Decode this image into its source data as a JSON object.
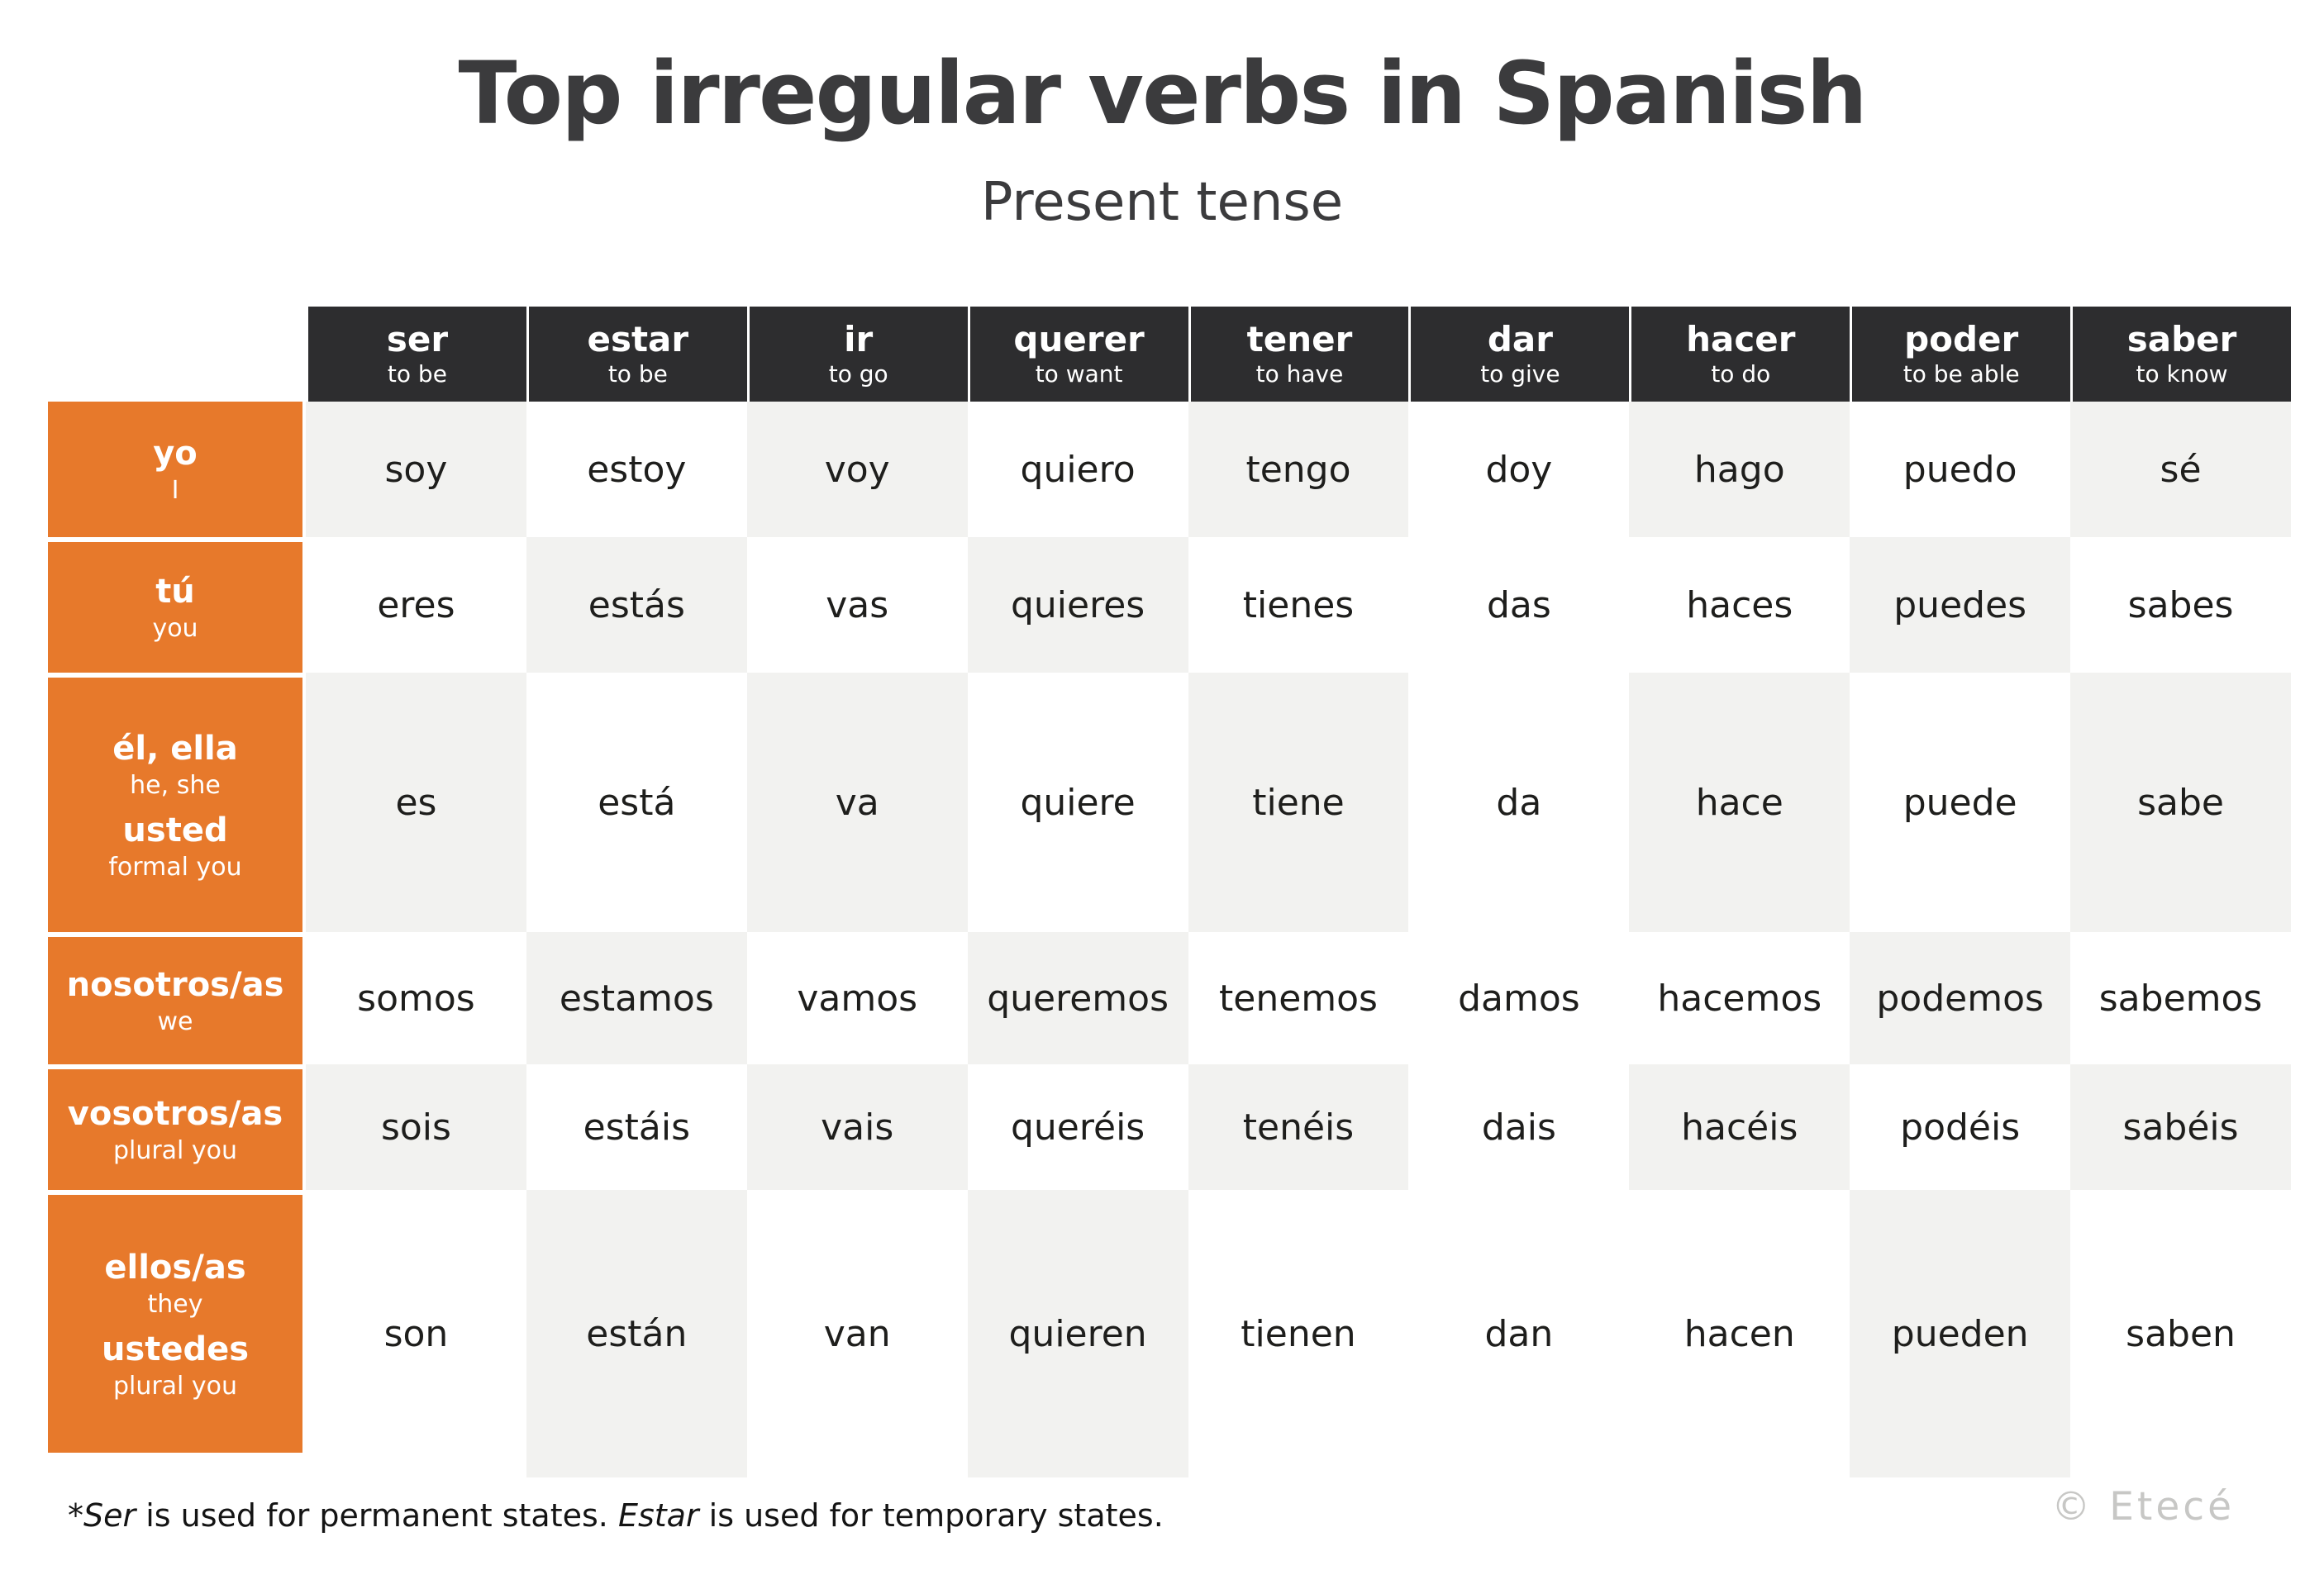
{
  "title": "Top irregular verbs in Spanish",
  "subtitle": "Present tense",
  "columns": [
    {
      "verb": "ser",
      "translation": "to be"
    },
    {
      "verb": "estar",
      "translation": "to be"
    },
    {
      "verb": "ir",
      "translation": "to go"
    },
    {
      "verb": "querer",
      "translation": "to want"
    },
    {
      "verb": "tener",
      "translation": "to have"
    },
    {
      "verb": "dar",
      "translation": "to give"
    },
    {
      "verb": "hacer",
      "translation": "to do"
    },
    {
      "verb": "poder",
      "translation": "to be able"
    },
    {
      "verb": "saber",
      "translation": "to know"
    }
  ],
  "rows": [
    {
      "pronoun": "yo",
      "pronoun_translation": "I",
      "forms": [
        "soy",
        "estoy",
        "voy",
        "quiero",
        "tengo",
        "doy",
        "hago",
        "puedo",
        "sé"
      ]
    },
    {
      "pronoun": "tú",
      "pronoun_translation": "you",
      "forms": [
        "eres",
        "estás",
        "vas",
        "quieres",
        "tienes",
        "das",
        "haces",
        "puedes",
        "sabes"
      ]
    },
    {
      "pronoun": "él, ella",
      "pronoun_translation": "he, she",
      "pronoun2": "usted",
      "pronoun2_translation": "formal you",
      "forms": [
        "es",
        "está",
        "va",
        "quiere",
        "tiene",
        "da",
        "hace",
        "puede",
        "sabe"
      ]
    },
    {
      "pronoun": "nosotros/as",
      "pronoun_translation": "we",
      "forms": [
        "somos",
        "estamos",
        "vamos",
        "queremos",
        "tenemos",
        "damos",
        "hacemos",
        "podemos",
        "sabemos"
      ]
    },
    {
      "pronoun": "vosotros/as",
      "pronoun_translation": "plural you",
      "forms": [
        "sois",
        "estáis",
        "vais",
        "queréis",
        "tenéis",
        "dais",
        "hacéis",
        "podéis",
        "sabéis"
      ]
    },
    {
      "pronoun": "ellos/as",
      "pronoun_translation": "they",
      "pronoun2": "ustedes",
      "pronoun2_translation": "plural you",
      "forms": [
        "son",
        "están",
        "van",
        "quieren",
        "tienen",
        "dan",
        "hacen",
        "pueden",
        "saben"
      ]
    }
  ],
  "footnote": {
    "marker": "*",
    "term1": "Ser",
    "text1": " is used for permanent states. ",
    "term2": "Estar",
    "text2": " is used for temporary states."
  },
  "watermark": "© Etecé",
  "colors": {
    "orange": "#E7792B",
    "header_dark": "#2D2D2F",
    "cell_gray": "#F2F2F0",
    "cell_white": "#FFFFFF",
    "title_ink": "#3B3B3D",
    "body_ink": "#1E1E1C",
    "watermark_gray": "#C7C7C5"
  },
  "chart_data": {
    "type": "table",
    "title": "Top irregular verbs in Spanish",
    "subtitle": "Present tense",
    "column_headers": [
      "ser (to be)",
      "estar (to be)",
      "ir (to go)",
      "querer (to want)",
      "tener (to have)",
      "dar (to give)",
      "hacer (to do)",
      "poder (to be able)",
      "saber (to know)"
    ],
    "row_headers": [
      "yo (I)",
      "tú (you)",
      "él, ella (he, she) / usted (formal you)",
      "nosotros/as (we)",
      "vosotros/as (plural you)",
      "ellos/as (they) / ustedes (plural you)"
    ],
    "cells": [
      [
        "soy",
        "estoy",
        "voy",
        "quiero",
        "tengo",
        "doy",
        "hago",
        "puedo",
        "sé"
      ],
      [
        "eres",
        "estás",
        "vas",
        "quieres",
        "tienes",
        "das",
        "haces",
        "puedes",
        "sabes"
      ],
      [
        "es",
        "está",
        "va",
        "quiere",
        "tiene",
        "da",
        "hace",
        "puede",
        "sabe"
      ],
      [
        "somos",
        "estamos",
        "vamos",
        "queremos",
        "tenemos",
        "damos",
        "hacemos",
        "podemos",
        "sabemos"
      ],
      [
        "sois",
        "estáis",
        "vais",
        "queréis",
        "tenéis",
        "dais",
        "hacéis",
        "podéis",
        "sabéis"
      ],
      [
        "son",
        "están",
        "van",
        "quieren",
        "tienen",
        "dan",
        "hacen",
        "pueden",
        "saben"
      ]
    ],
    "footnote": "*Ser is used for permanent states. Estar is used for temporary states.",
    "layout_hints": "checkerboard shading of body cells (light gray / white), dar column all white; orange row-label column; dark column-header row"
  }
}
